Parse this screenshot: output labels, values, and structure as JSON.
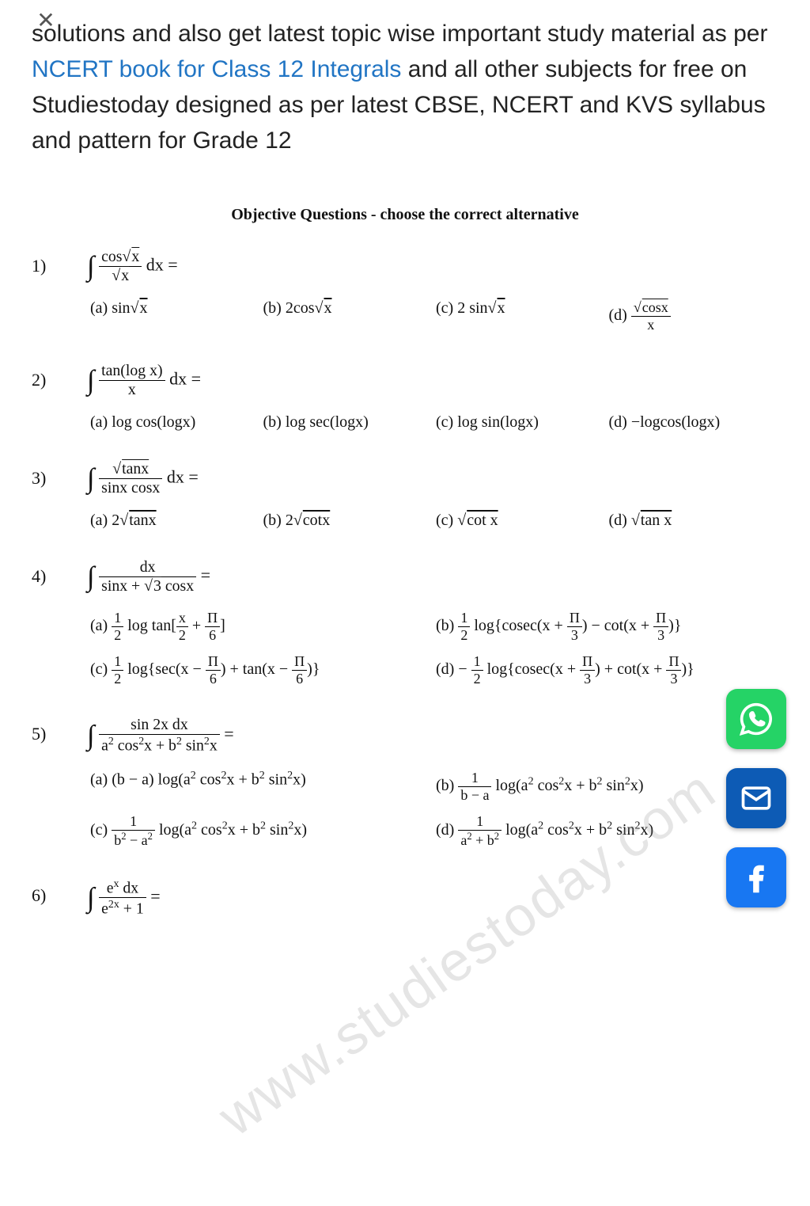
{
  "intro": {
    "part1": "solutions and also get latest topic wise important study material as per ",
    "link1": "NCERT book for Class 12 Integrals",
    "part2": " and all other subjects for free on Studiestoday designed as per latest CBSE, NCERT and KVS syllabus and pattern for Grade 12",
    "link_color": "#2175c4"
  },
  "heading": "Objective Questions - choose the correct alternative",
  "questions": [
    {
      "num": "1)",
      "expr_html": "<span class='intg'>∫</span> <span class='frac'><span class='num'>cos√<span class='sqrt'>x</span></span><span class='den'>√<span class='sqrt'>x</span></span></span> dx =",
      "options": [
        {
          "label": "(a)",
          "html": "sin√<span class='sqrt'>x</span>"
        },
        {
          "label": "(b)",
          "html": "2cos√<span class='sqrt'>x</span>"
        },
        {
          "label": "(c)",
          "html": "2 sin√<span class='sqrt'>x</span>"
        },
        {
          "label": "(d)",
          "html": "<span class='frac'><span class='num'>√<span class='sqrt'>cosx</span></span><span class='den'>x</span></span>"
        }
      ]
    },
    {
      "num": "2)",
      "expr_html": "<span class='intg'>∫</span> <span class='frac'><span class='num'>tan(log x)</span><span class='den'>x</span></span> dx =",
      "options": [
        {
          "label": "(a)",
          "html": "log cos(logx)"
        },
        {
          "label": "(b)",
          "html": "log sec(logx)"
        },
        {
          "label": "(c)",
          "html": "log sin(logx)"
        },
        {
          "label": "(d)",
          "html": "−logcos(logx)"
        }
      ]
    },
    {
      "num": "3)",
      "expr_html": "<span class='intg'>∫</span> <span class='frac'><span class='num'>√<span class='sqrt'>tanx</span></span><span class='den'>sinx cosx</span></span> dx =",
      "options": [
        {
          "label": "(a)",
          "html": "2√<span class='sqrt'>tanx</span>"
        },
        {
          "label": "(b)",
          "html": "2√<span class='sqrt'>cotx</span>"
        },
        {
          "label": "(c)",
          "html": "√<span class='sqrt'>cot x</span>"
        },
        {
          "label": "(d)",
          "html": "√<span class='sqrt'>tan x</span>"
        }
      ]
    },
    {
      "num": "4)",
      "expr_html": "<span class='intg'>∫</span> <span class='frac'><span class='num'>dx</span><span class='den'>sinx + √<span class='sqrt'>3</span> cosx</span></span> =",
      "options": [
        {
          "label": "(a)",
          "wide": true,
          "html": "<span class='frac'><span class='num'>1</span><span class='den'>2</span></span> log tan[<span class='frac'><span class='num'>x</span><span class='den'>2</span></span> + <span class='frac'><span class='num'>Π</span><span class='den'>6</span></span>]"
        },
        {
          "label": "(b)",
          "wide": true,
          "html": "<span class='frac'><span class='num'>1</span><span class='den'>2</span></span> log{cosec(x + <span class='frac'><span class='num'>Π</span><span class='den'>3</span></span>) − cot(x + <span class='frac'><span class='num'>Π</span><span class='den'>3</span></span>)}"
        },
        {
          "label": "(c)",
          "wide": true,
          "html": "<span class='frac'><span class='num'>1</span><span class='den'>2</span></span> log{sec(x − <span class='frac'><span class='num'>Π</span><span class='den'>6</span></span>) + tan(x − <span class='frac'><span class='num'>Π</span><span class='den'>6</span></span>)}"
        },
        {
          "label": "(d)",
          "wide": true,
          "html": "− <span class='frac'><span class='num'>1</span><span class='den'>2</span></span> log{cosec(x + <span class='frac'><span class='num'>Π</span><span class='den'>3</span></span>) + cot(x + <span class='frac'><span class='num'>Π</span><span class='den'>3</span></span>)}"
        }
      ]
    },
    {
      "num": "5)",
      "expr_html": "<span class='intg'>∫</span> <span class='frac'><span class='num'>sin 2x dx</span><span class='den'>a<span class='sup2'>2</span> cos<span class='sup2'>2</span>x + b<span class='sup2'>2</span> sin<span class='sup2'>2</span>x</span></span> =",
      "options": [
        {
          "label": "(a)",
          "wide": true,
          "html": "(b − a) log(a<span class='sup2'>2</span> cos<span class='sup2'>2</span>x + b<span class='sup2'>2</span> sin<span class='sup2'>2</span>x)"
        },
        {
          "label": "(b)",
          "wide": true,
          "html": "<span class='frac'><span class='num'>1</span><span class='den'>b − a</span></span> log(a<span class='sup2'>2</span> cos<span class='sup2'>2</span>x + b<span class='sup2'>2</span> sin<span class='sup2'>2</span>x)"
        },
        {
          "label": "(c)",
          "wide": true,
          "html": "<span class='frac'><span class='num'>1</span><span class='den'>b<span class='sup2'>2</span> − a<span class='sup2'>2</span></span></span> log(a<span class='sup2'>2</span> cos<span class='sup2'>2</span>x + b<span class='sup2'>2</span> sin<span class='sup2'>2</span>x)"
        },
        {
          "label": "(d)",
          "wide": true,
          "html": "<span class='frac'><span class='num'>1</span><span class='den'>a<span class='sup2'>2</span> + b<span class='sup2'>2</span></span></span> log(a<span class='sup2'>2</span> cos<span class='sup2'>2</span>x + b<span class='sup2'>2</span> sin<span class='sup2'>2</span>x)"
        }
      ]
    },
    {
      "num": "6)",
      "expr_html": "<span class='intg'>∫</span> <span class='frac'><span class='num'>e<span class='sup2'>x</span> dx</span><span class='den'>e<span class='sup2'>2x</span> + 1</span></span> =",
      "options": []
    }
  ],
  "watermark": "www.studiestoday.com",
  "social": {
    "whatsapp_bg": "#25d366",
    "email_bg": "#0d5bb5",
    "facebook_bg": "#1877f2"
  }
}
